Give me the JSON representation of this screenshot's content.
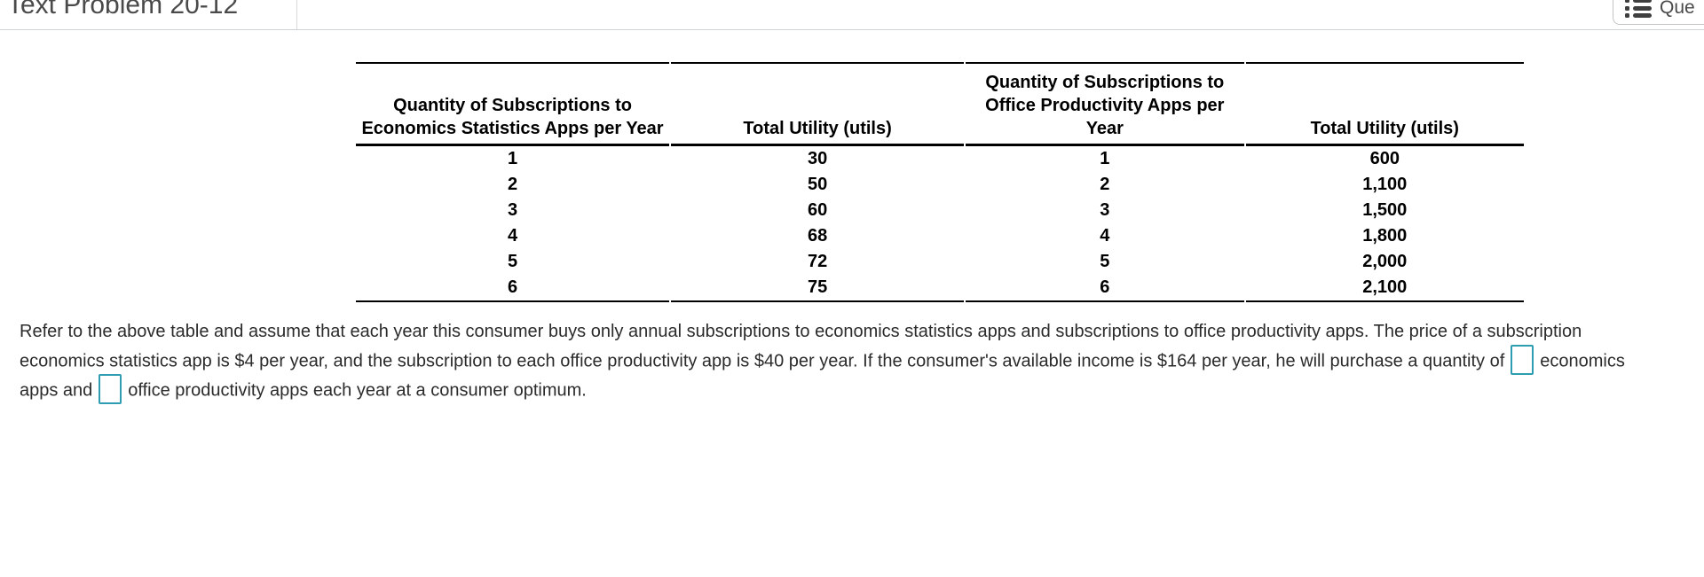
{
  "header": {
    "tab_title": "Text Problem 20-12",
    "question_list_button": "Que"
  },
  "table": {
    "headers": [
      "Quantity of Subscriptions to\nEconomics Statistics Apps per Year",
      "Total Utility (utils)",
      "Quantity of Subscriptions to\nOffice Productivity Apps per\nYear",
      "Total Utility (utils)"
    ],
    "rows": [
      [
        "1",
        "30",
        "1",
        "600"
      ],
      [
        "2",
        "50",
        "2",
        "1,100"
      ],
      [
        "3",
        "60",
        "3",
        "1,500"
      ],
      [
        "4",
        "68",
        "4",
        "1,800"
      ],
      [
        "5",
        "72",
        "5",
        "2,000"
      ],
      [
        "6",
        "75",
        "6",
        "2,100"
      ]
    ]
  },
  "question": {
    "line1": "Refer to the above table and assume that each year this consumer buys only annual subscriptions to economics statistics apps and subscriptions to office productivity apps. The price of a subscription",
    "line2_before": "economics statistics app is $4 per year, and the subscription to each office productivity app is $40 per year. If the consumer's available income is $164 per year, he will purchase a quantity of",
    "line2_after": "economics",
    "line3_before": "apps and",
    "line3_after": "office productivity apps each year at a consumer optimum."
  },
  "colors": {
    "answer_box_border": "#2f9db1",
    "table_text": "#000000",
    "header_border": "#ccd4d8"
  }
}
